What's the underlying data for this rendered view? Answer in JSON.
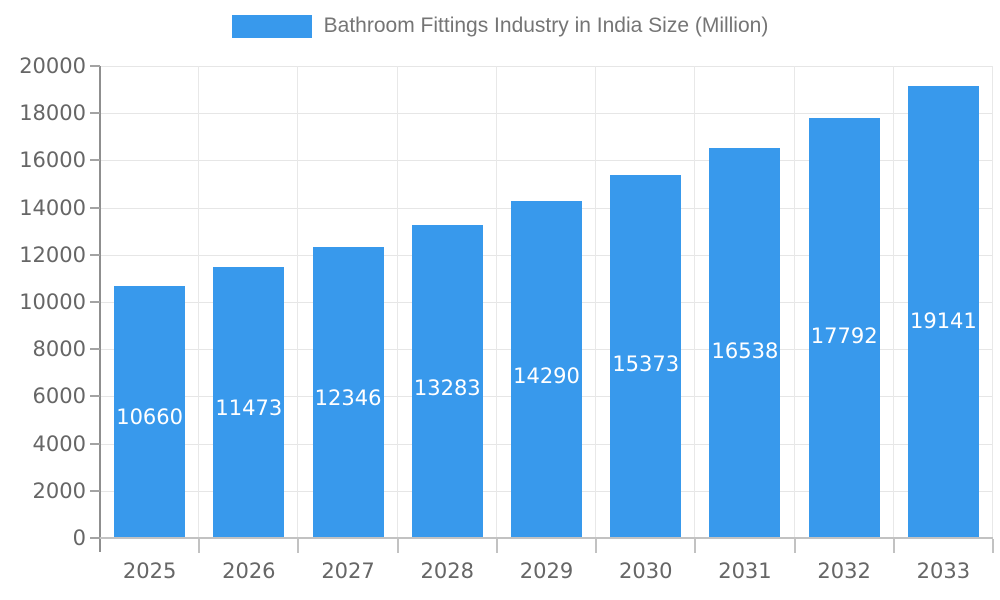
{
  "colors": {
    "bar": "#3899ec",
    "bar_label": "#ffffff",
    "axis_text": "#666666",
    "legend_text": "#757575",
    "gridline": "#e6e6e6",
    "y_axis_line": "#8f8f8f",
    "x_axis_line": "#c2c2c2"
  },
  "chart_data": {
    "type": "bar",
    "title": "Bathroom Fittings Industry in India Size (Million)",
    "categories": [
      "2025",
      "2026",
      "2027",
      "2028",
      "2029",
      "2030",
      "2031",
      "2032",
      "2033"
    ],
    "values": [
      10660,
      11473,
      12346,
      13283,
      14290,
      15373,
      16538,
      17792,
      19141
    ],
    "series_name": "Bathroom Fittings Industry in India Size (Million)",
    "xlabel": "",
    "ylabel": "",
    "ylim": [
      0,
      20000
    ],
    "yticks": [
      0,
      2000,
      4000,
      6000,
      8000,
      10000,
      12000,
      14000,
      16000,
      18000,
      20000
    ],
    "grid": true,
    "legend_position": "top",
    "bar_labels": "inside-middle"
  }
}
